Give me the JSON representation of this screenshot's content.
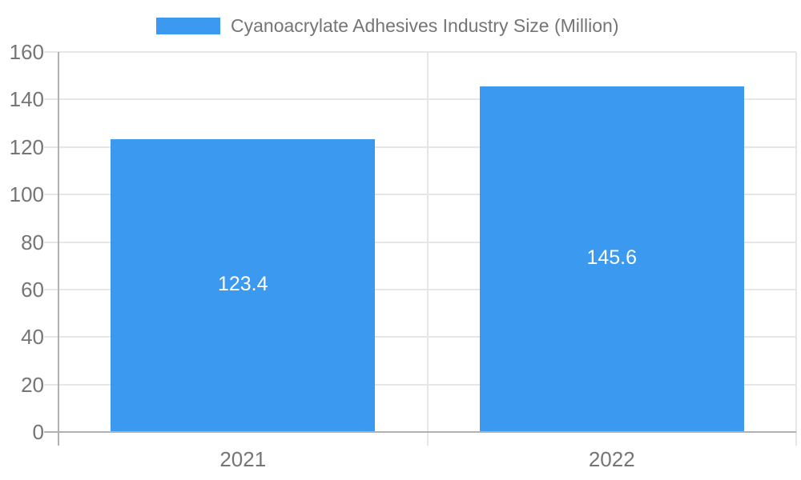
{
  "chart_data": {
    "type": "bar",
    "title": "Cyanoacrylate Adhesives Industry Size (Million)",
    "categories": [
      "2021",
      "2022"
    ],
    "series": [
      {
        "name": "Cyanoacrylate Adhesives Industry Size (Million)",
        "values": [
          123.4,
          145.6
        ]
      }
    ],
    "value_labels": [
      "123.4",
      "145.6"
    ],
    "xlabel": "",
    "ylabel": "",
    "ylim": [
      0,
      160
    ],
    "yticks": [
      0,
      20,
      40,
      60,
      80,
      100,
      120,
      140,
      160
    ],
    "grid": true,
    "legend_position": "top-center"
  },
  "colors": {
    "bar": "#3B99EF",
    "axis_text": "#757575",
    "legend_text": "#757575",
    "value_label_text": "#FFFFFF",
    "gridline": "#E6E6E6",
    "axis_line": "#B1B1B1",
    "background": "#FFFFFF"
  }
}
